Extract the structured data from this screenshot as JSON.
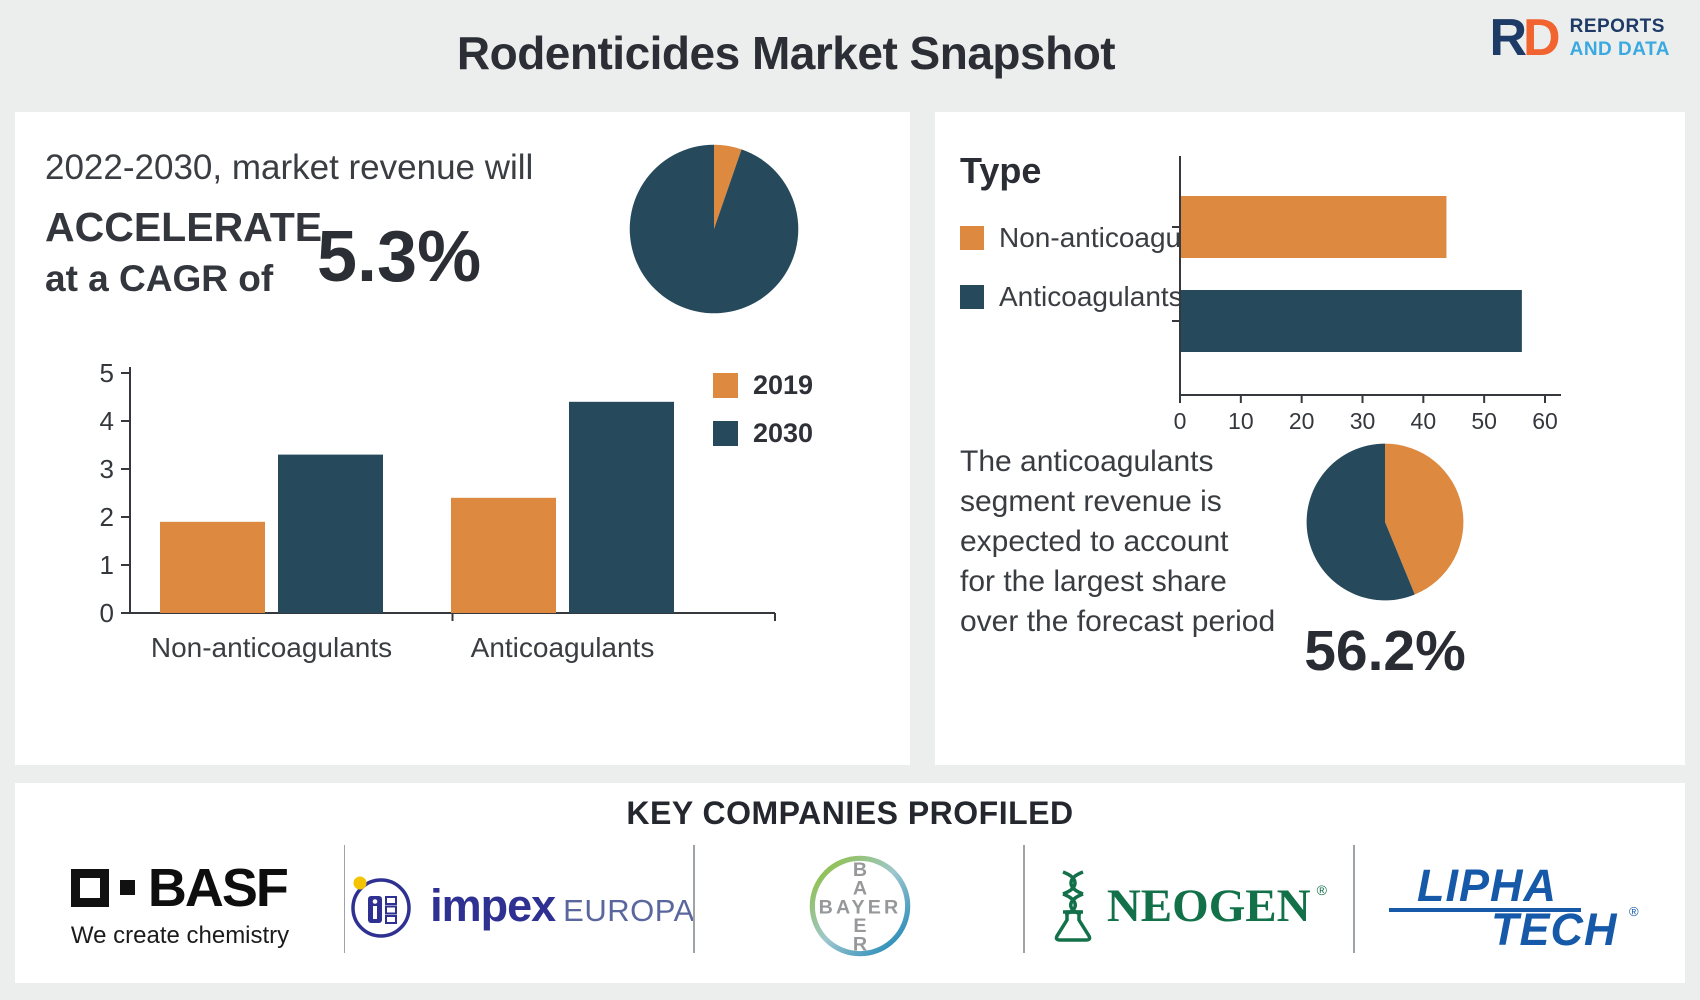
{
  "header": {
    "title": "Rodenticides Market Snapshot",
    "logo": {
      "letter_r": "R",
      "letter_d": "D",
      "line1": "REPORTS",
      "line2": "AND DATA"
    }
  },
  "cagr_panel": {
    "line1": "2022-2030, market revenue will",
    "line2": "ACCELERATE",
    "line3": "at a CAGR of",
    "value": "5.3%"
  },
  "type_panel": {
    "heading": "Type",
    "legend": [
      {
        "label": "Non-anticoagulants",
        "color": "#dd8a40"
      },
      {
        "label": "Anticoagulants",
        "color": "#264a5c"
      }
    ],
    "note_lines": [
      "The anticoagulants",
      "segment revenue is",
      "expected to account",
      "for the largest share",
      "over the forecast period"
    ],
    "share_value": "56.2%"
  },
  "companies": {
    "heading": "KEY COMPANIES PROFILED",
    "basf": {
      "name": "BASF",
      "tagline": "We create chemistry"
    },
    "impex": {
      "name": "impex",
      "region": "EUROPA"
    },
    "bayer": {
      "name": "BAYER"
    },
    "neogen": {
      "name": "NEOGEN",
      "reg": "®"
    },
    "liphatech": {
      "part1": "LIPHA",
      "part2": "TECH",
      "reg": "®"
    }
  },
  "chart_data": [
    {
      "id": "cagr-pie",
      "type": "pie",
      "title": "2022-2030 market revenue CAGR",
      "slices": [
        {
          "label": "CAGR 5.3%",
          "value": 5.3,
          "color": "#dd8a40"
        },
        {
          "label": "Remainder",
          "value": 94.7,
          "color": "#264a5c"
        }
      ]
    },
    {
      "id": "segment-revenue-bars",
      "type": "bar",
      "categories": [
        "Non-anticoagulants",
        "Anticoagulants"
      ],
      "series": [
        {
          "name": "2019",
          "color": "#dd8a40",
          "values": [
            1.9,
            2.4
          ]
        },
        {
          "name": "2030",
          "color": "#264a5c",
          "values": [
            3.3,
            4.4
          ]
        }
      ],
      "ylim": [
        0,
        5
      ],
      "yticks": [
        0,
        1,
        2,
        3,
        4,
        5
      ],
      "grid": false,
      "legend_position": "upper right"
    },
    {
      "id": "type-share-hbar",
      "type": "bar",
      "orientation": "horizontal",
      "categories": [
        "Non-anticoagulants",
        "Anticoagulants"
      ],
      "values": [
        43.8,
        56.2
      ],
      "colors": [
        "#dd8a40",
        "#264a5c"
      ],
      "xlim": [
        0,
        60
      ],
      "xticks": [
        0,
        10,
        20,
        30,
        40,
        50,
        60
      ]
    },
    {
      "id": "anticoagulants-share-pie",
      "type": "pie",
      "annotation": "56.2%",
      "slices": [
        {
          "label": "Non-anticoagulants",
          "value": 43.8,
          "color": "#dd8a40"
        },
        {
          "label": "Anticoagulants",
          "value": 56.2,
          "color": "#264a5c"
        }
      ]
    }
  ]
}
